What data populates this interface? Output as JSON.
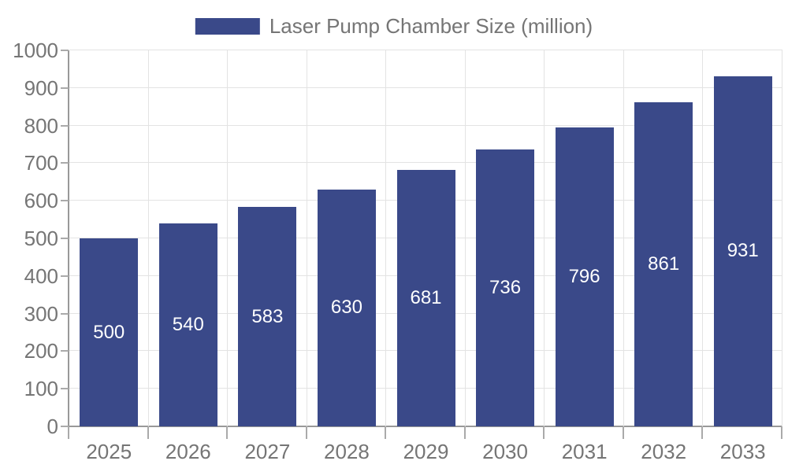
{
  "chart_data": {
    "type": "bar",
    "title": "Laser Pump Chamber Size (million)",
    "legend": [
      "Laser Pump Chamber Size (million)"
    ],
    "legend_position": "top-center",
    "categories": [
      "2025",
      "2026",
      "2027",
      "2028",
      "2029",
      "2030",
      "2031",
      "2032",
      "2033"
    ],
    "values": [
      500,
      540,
      583,
      630,
      681,
      736,
      796,
      861,
      931
    ],
    "value_labels_position": "inside-center",
    "xlabel": "",
    "ylabel": "",
    "ylim": [
      0,
      1000
    ],
    "ytick_step": 100,
    "ytick_labels": [
      "0",
      "100",
      "200",
      "300",
      "400",
      "500",
      "600",
      "700",
      "800",
      "900",
      "1000"
    ],
    "grid": true,
    "colors": {
      "bar": "#3A4989",
      "axis_line": "#999999",
      "grid_line": "#E3E3E3",
      "tick_mark": "#AAAAAA",
      "axis_text": "#757575",
      "value_label_text": "#FFFFFF",
      "background": "#FFFFFF"
    }
  }
}
